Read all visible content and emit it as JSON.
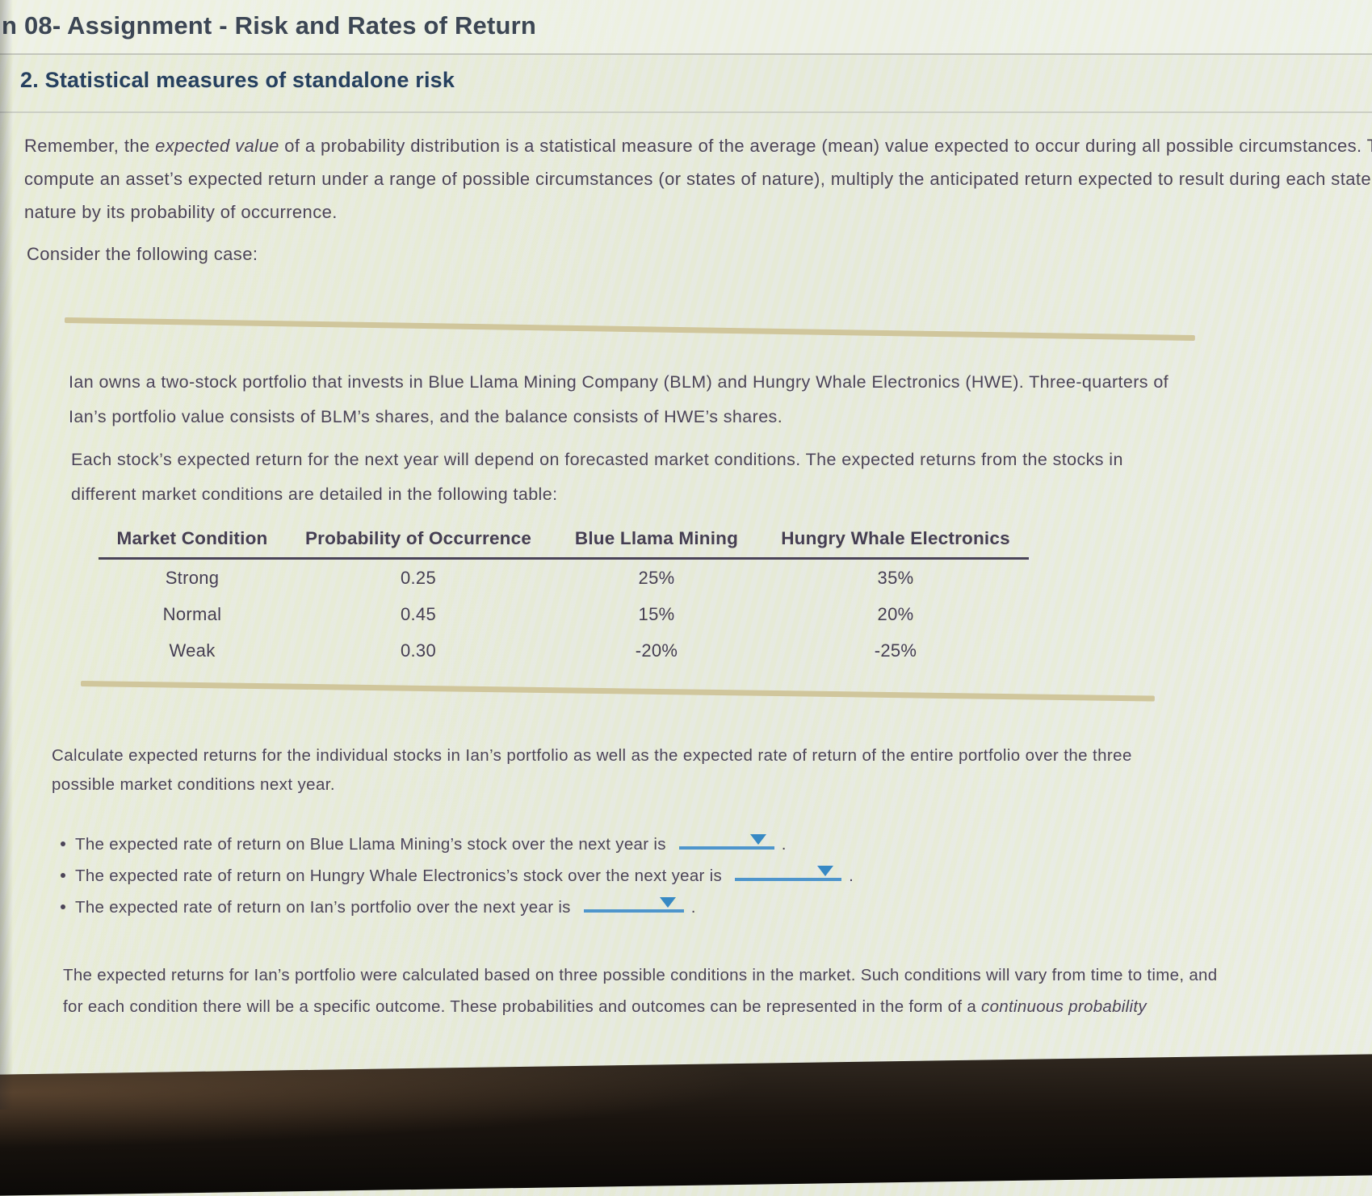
{
  "page": {
    "title_partial": "n",
    "title": "08- Assignment - Risk and Rates of Return",
    "section_heading": "2. Statistical measures of standalone risk"
  },
  "intro": {
    "p1_pre": "Remember, the ",
    "p1_italic": "expected value",
    "p1_post": " of a probability distribution is a statistical measure of the average (mean) value expected to occur during all possible circumstances. To compute an asset’s expected return under a range of possible circumstances (or states of nature), multiply the anticipated return expected to result during each state of nature by its probability of occurrence.",
    "consider": "Consider the following case:"
  },
  "case": {
    "p1": "Ian owns a two-stock portfolio that invests in Blue Llama Mining Company (BLM) and Hungry Whale Electronics (HWE). Three-quarters of Ian’s portfolio value consists of BLM’s shares, and the balance consists of HWE’s shares.",
    "p2": "Each stock’s expected return for the next year will depend on forecasted market conditions. The expected returns from the stocks in different market conditions are detailed in the following table:"
  },
  "table": {
    "headers": [
      "Market Condition",
      "Probability of Occurrence",
      "Blue Llama Mining",
      "Hungry Whale Electronics"
    ],
    "rows": [
      {
        "condition": "Strong",
        "probability": "0.25",
        "blm": "25%",
        "hwe": "35%"
      },
      {
        "condition": "Normal",
        "probability": "0.45",
        "blm": "15%",
        "hwe": "20%"
      },
      {
        "condition": "Weak",
        "probability": "0.30",
        "blm": "-20%",
        "hwe": "-25%"
      }
    ]
  },
  "question": {
    "prompt": "Calculate expected returns for the individual stocks in Ian’s portfolio as well as the expected rate of return of the entire portfolio over the three possible market conditions next year.",
    "bullets": [
      {
        "text": "The expected rate of return on Blue Llama Mining’s stock over the next year is",
        "suffix": "."
      },
      {
        "text": "The expected rate of return on Hungry Whale Electronics’s stock over the next year is",
        "suffix": "."
      },
      {
        "text": "The expected rate of return on Ian’s portfolio over the next year is",
        "suffix": "."
      }
    ]
  },
  "outro": {
    "pre": "The expected returns for Ian’s portfolio were calculated based on three possible conditions in the market. Such conditions will vary from time to time, and for each condition there will be a specific outcome. These probabilities and outcomes can be represented in the form of a ",
    "italic": "continuous probability"
  },
  "colors": {
    "dropdown_blue": "#4e95cc",
    "dropdown_triangle_blue": "#3789c4",
    "separator_tan": "#d0c69c",
    "heading_navy": "#26405f",
    "body_text": "#4c4458"
  }
}
